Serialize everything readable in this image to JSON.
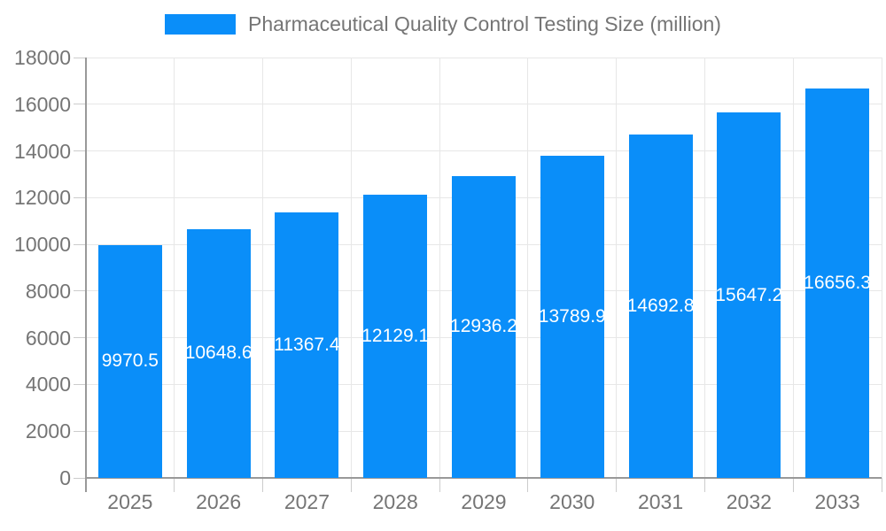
{
  "chart_data": {
    "type": "bar",
    "title": "Pharmaceutical Quality Control Testing Size (million)",
    "legend": {
      "position": "top",
      "entries": [
        "Pharmaceutical Quality Control Testing Size (million)"
      ]
    },
    "categories": [
      "2025",
      "2026",
      "2027",
      "2028",
      "2029",
      "2030",
      "2031",
      "2032",
      "2033"
    ],
    "values": [
      9970.5,
      10648.6,
      11367.4,
      12129.1,
      12936.2,
      13789.9,
      14692.8,
      15647.2,
      16656.3
    ],
    "value_label_decimals": 1,
    "xlabel": "",
    "ylabel": "",
    "ylim": [
      0,
      18000
    ],
    "ytick_step": 2000,
    "grid": true,
    "colors": {
      "bar": "#0a8ef9",
      "grid_line": "#e7e7e7",
      "axis_line": "#999999",
      "tick": "#cccccc",
      "axis_text": "#757575",
      "value_label": "#ffffff",
      "background": "#ffffff"
    }
  }
}
